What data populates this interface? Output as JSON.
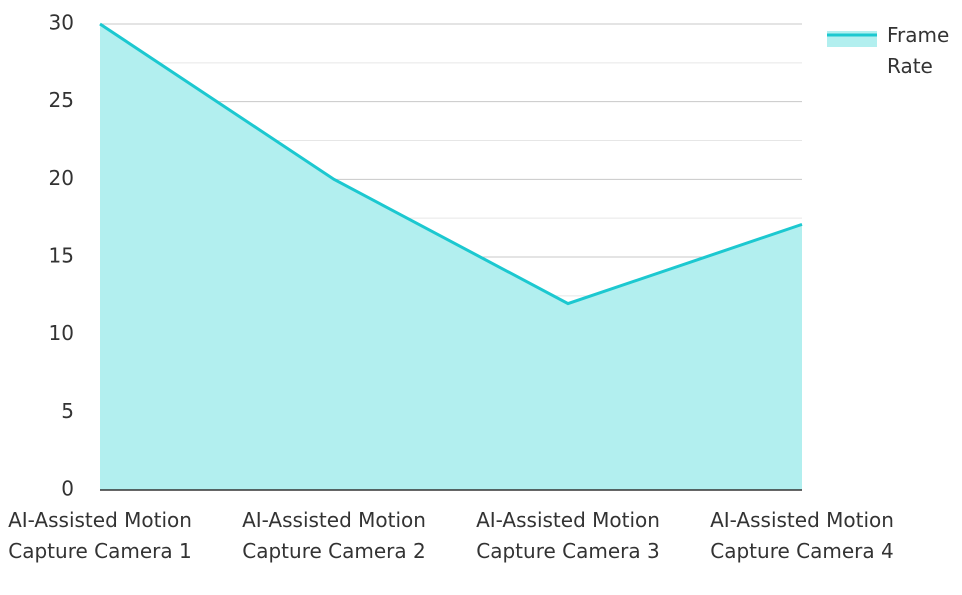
{
  "chart_data": {
    "type": "area",
    "categories": [
      "AI-Assisted Motion Capture Camera 1",
      "AI-Assisted Motion Capture Camera 2",
      "AI-Assisted Motion Capture Camera 3",
      "AI-Assisted Motion Capture Camera 4"
    ],
    "series": [
      {
        "name": "Frame Rate",
        "color": "#1cc8d0",
        "fill": "#b2efef",
        "values": [
          30,
          20,
          12,
          17.1
        ]
      }
    ],
    "ylim": [
      0,
      30
    ],
    "yticks": [
      0,
      5,
      10,
      15,
      20,
      25,
      30
    ],
    "grid": true,
    "minor_grid": true,
    "legend": "top-right"
  }
}
